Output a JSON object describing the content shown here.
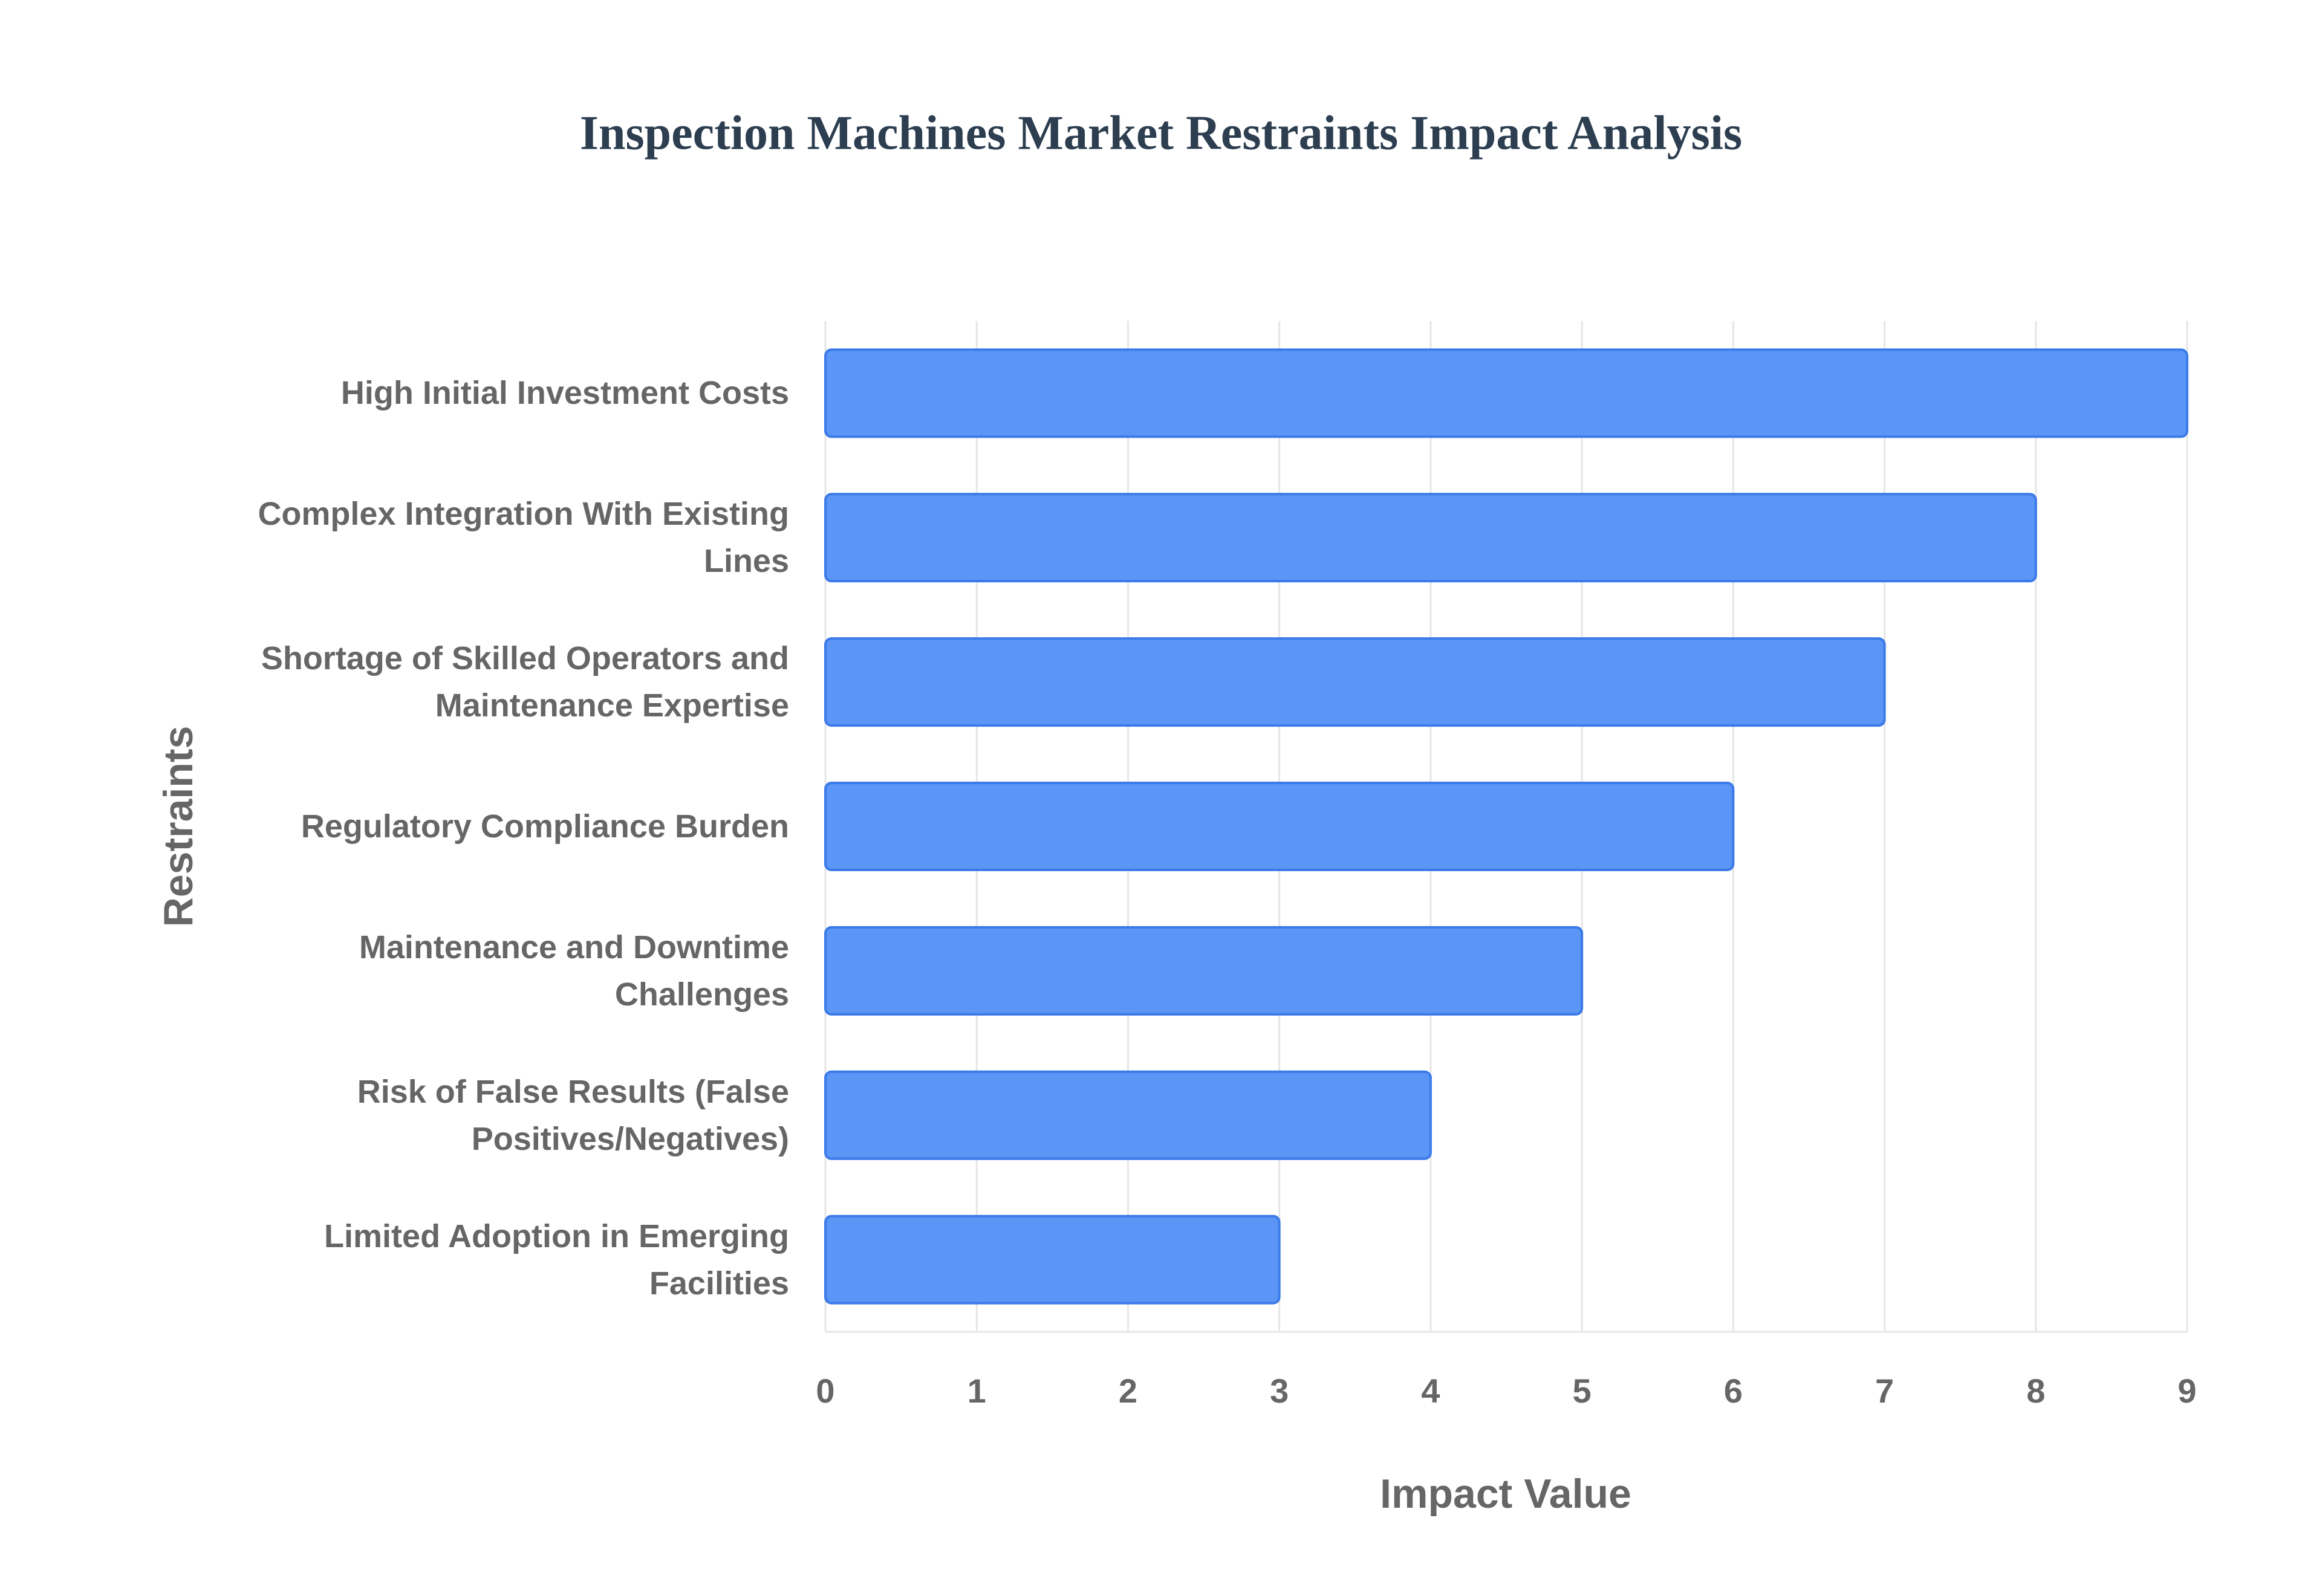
{
  "chart_data": {
    "type": "bar",
    "orientation": "horizontal",
    "title": "Inspection Machines Market Restraints Impact Analysis",
    "x_axis_label": "Impact Value",
    "y_axis_label": "Restraints",
    "categories": [
      "High Initial Investment Costs",
      "Complex Integration With Existing Lines",
      "Shortage of Skilled Operators and Maintenance Expertise",
      "Regulatory Compliance Burden",
      "Maintenance and Downtime Challenges",
      "Risk of False Results (False Positives/Negatives)",
      "Limited Adoption in Emerging Facilities"
    ],
    "values": [
      9,
      8,
      7,
      6,
      5,
      4,
      3
    ],
    "color": "#5b95f5",
    "xlim": [
      0,
      9
    ],
    "xticks": [
      0,
      1,
      2,
      3,
      4,
      5,
      6,
      7,
      8,
      9
    ],
    "grid": true
  }
}
